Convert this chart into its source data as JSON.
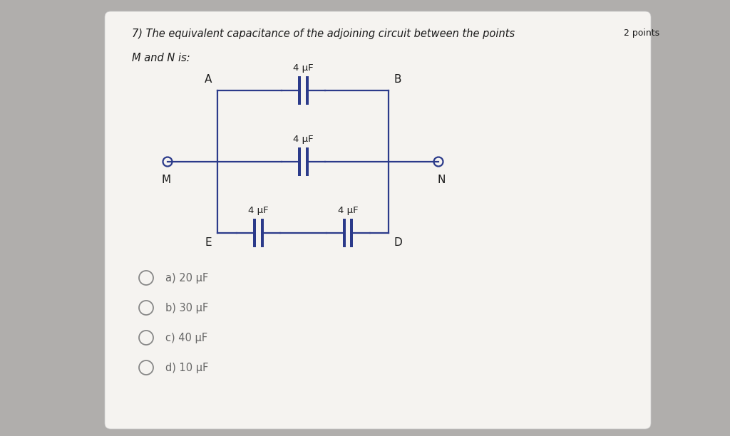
{
  "title_line1": "7) The equivalent capacitance of the adjoining circuit between the points",
  "points_label": "2 points",
  "title_line2": "M and N is:",
  "bg_color": "#b0aeac",
  "card_color": "#f5f3f0",
  "text_color": "#1a1a1a",
  "circuit_color": "#2b3a8a",
  "options": [
    "a) 20 μF",
    "b) 30 μF",
    "c) 40 μF",
    "d) 10 μF"
  ],
  "opt_color": "#666666",
  "radio_color": "#888888"
}
